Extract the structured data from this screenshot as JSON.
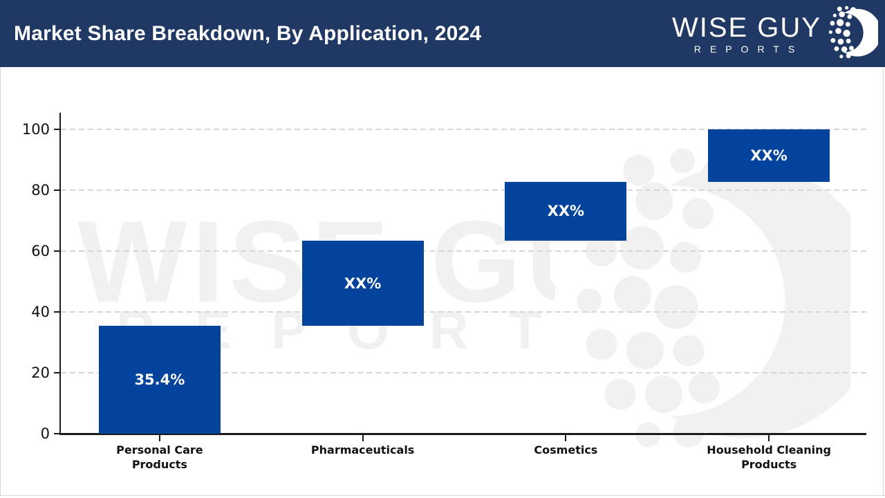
{
  "header": {
    "title": "Market Share Breakdown, By Application, 2024",
    "logo": {
      "line1": "WISE GUY",
      "line2": "REPORTS"
    }
  },
  "watermark": {
    "line1": "WISE GUY",
    "line2": "REPORTS"
  },
  "chart_data": {
    "type": "bar",
    "subtype": "waterfall-floating-bars",
    "title": "Market Share Breakdown, By Application, 2024",
    "unit": "percent market share",
    "ylim": [
      0,
      100
    ],
    "yticks": [
      0,
      20,
      40,
      60,
      80,
      100
    ],
    "grid": "horizontal-dashed",
    "bar_color": "#04439C",
    "categories": [
      "Personal Care Products",
      "Pharmaceuticals",
      "Cosmetics",
      "Household Cleaning Products"
    ],
    "category_label_lines": [
      [
        "Personal Care",
        "Products"
      ],
      [
        "Pharmaceuticals"
      ],
      [
        "Cosmetics"
      ],
      [
        "Household Cleaning",
        "Products"
      ]
    ],
    "segments": [
      {
        "category": "Personal Care Products",
        "start": 0,
        "end": 35.4,
        "value": 35.4,
        "label": "35.4%"
      },
      {
        "category": "Pharmaceuticals",
        "start": 35.4,
        "end": 63.4,
        "value": 28.0,
        "label": "XX%"
      },
      {
        "category": "Cosmetics",
        "start": 63.4,
        "end": 82.8,
        "value": 19.4,
        "label": "XX%"
      },
      {
        "category": "Household Cleaning Products",
        "start": 82.8,
        "end": 100,
        "value": 17.2,
        "label": "XX%"
      }
    ]
  }
}
